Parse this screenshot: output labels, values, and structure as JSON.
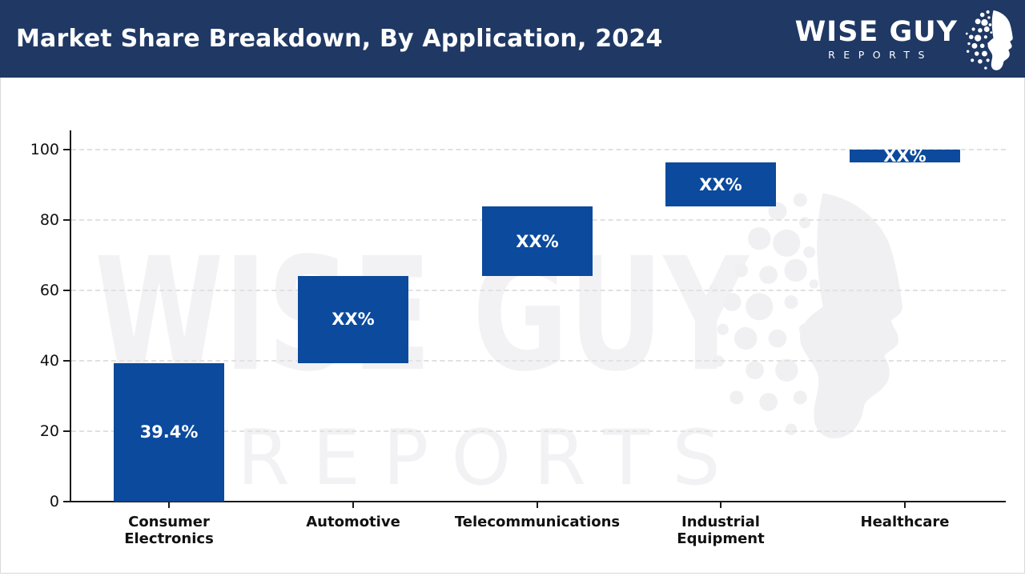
{
  "header": {
    "title": "Market Share Breakdown, By Application, 2024",
    "bg_color": "#1F3864",
    "logo": {
      "line1": "WISE GUY",
      "line2": "REPORTS"
    }
  },
  "watermark": {
    "line1": "WISE GUY",
    "line2": "REPORTS"
  },
  "chart_data": {
    "type": "bar",
    "subtype": "waterfall",
    "title": "Market Share Breakdown, By Application, 2024",
    "categories": [
      "Consumer Electronics",
      "Automotive",
      "Telecommunications",
      "Industrial Equipment",
      "Healthcare"
    ],
    "category_label_lines": [
      [
        "Consumer",
        "Electronics"
      ],
      [
        "Automotive"
      ],
      [
        "Telecommunications"
      ],
      [
        "Industrial",
        "Equipment"
      ],
      [
        "Healthcare"
      ]
    ],
    "segments": [
      {
        "category": "Consumer Electronics",
        "start": 0,
        "end": 39.4,
        "label": "39.4%"
      },
      {
        "category": "Automotive",
        "start": 39.4,
        "end": 64.1,
        "label": "XX%"
      },
      {
        "category": "Telecommunications",
        "start": 64.1,
        "end": 83.8,
        "label": "XX%"
      },
      {
        "category": "Industrial Equipment",
        "start": 83.8,
        "end": 96.4,
        "label": "XX%"
      },
      {
        "category": "Healthcare",
        "start": 96.4,
        "end": 100.0,
        "label": "XX%"
      }
    ],
    "ylim": [
      0,
      100
    ],
    "yticks": [
      0,
      20,
      40,
      60,
      80,
      100
    ],
    "grid": "horizontal-dashed",
    "legend": "none",
    "bar_color": "#0B4A9D",
    "bar_label_color": "#FFFFFF",
    "axis_color": "#1A1A1A"
  }
}
